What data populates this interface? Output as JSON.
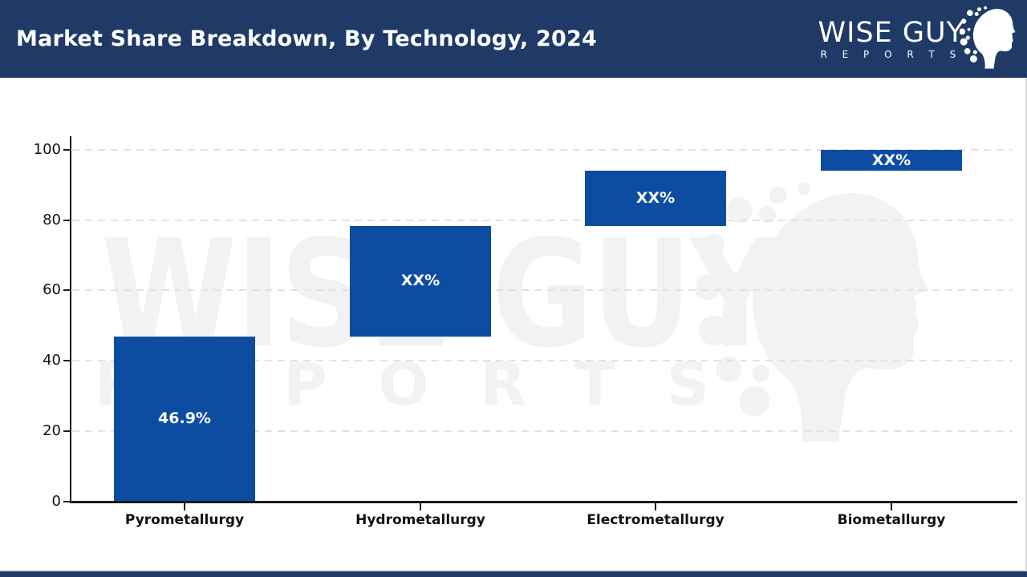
{
  "header": {
    "title": "Market Share Breakdown, By Technology, 2024",
    "logo_line1": "WISE GUY",
    "logo_line2": "R E P O R T S"
  },
  "watermark": {
    "line1": "WISE GUY",
    "line2": "REPORTS"
  },
  "chart_data": {
    "type": "bar",
    "subtype": "waterfall-cumulative-percentage",
    "title": "Market Share Breakdown, By Technology, 2024",
    "categories": [
      "Pyrometallurgy",
      "Hydrometallurgy",
      "Electrometallurgy",
      "Biometallurgy"
    ],
    "segments": [
      {
        "category": "Pyrometallurgy",
        "start": 0,
        "end": 46.9,
        "label": "46.9%"
      },
      {
        "category": "Hydrometallurgy",
        "start": 46.9,
        "end": 78.3,
        "label": "XX%"
      },
      {
        "category": "Electrometallurgy",
        "start": 78.3,
        "end": 94,
        "label": "XX%"
      },
      {
        "category": "Biometallurgy",
        "start": 94,
        "end": 100,
        "label": "XX%"
      }
    ],
    "y_ticks": [
      "0",
      "20",
      "40",
      "60",
      "80",
      "100"
    ],
    "ylim": [
      0,
      100
    ],
    "xlabel": "",
    "ylabel": "",
    "grid": "horizontal-dashed",
    "legend": "none",
    "bar_color": "#0c4da2",
    "bar_label_color": "#ffffff"
  },
  "colors": {
    "header_bg": "#1f3a67",
    "footer_bg": "#1f3a67",
    "bar": "#0c4da2",
    "gridline": "#e2e2e2",
    "axis": "#1a1a1a",
    "watermark": "#f2f2f2"
  }
}
